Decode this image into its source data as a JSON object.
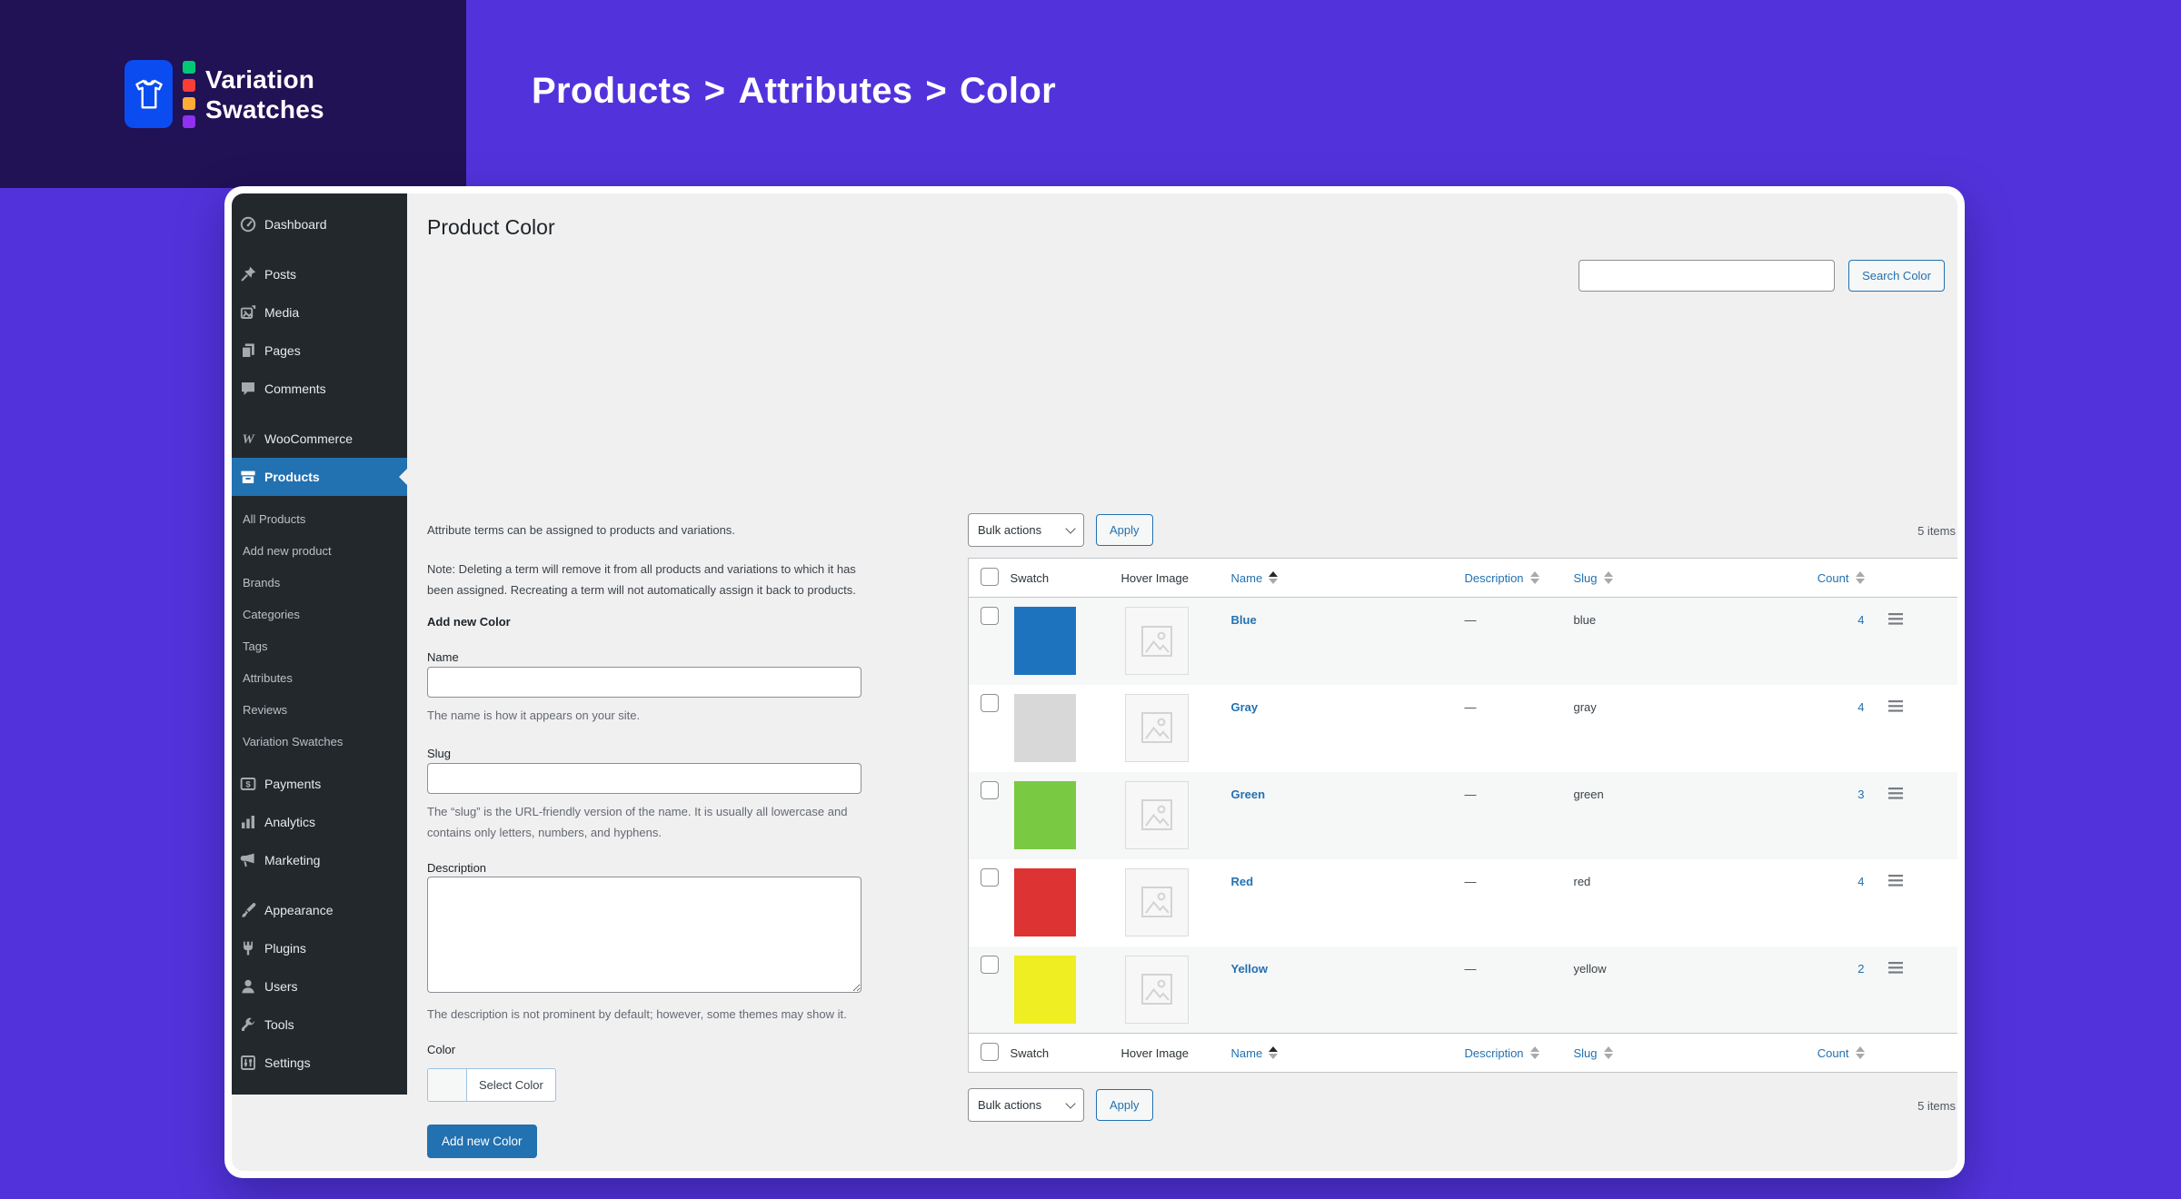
{
  "colors": {
    "frame_purple": "#5233db",
    "frame_dark": "#211155",
    "brand_blue": "#0a4cf0",
    "wp_blue": "#2271b1",
    "sidebar_bg": "#23282d",
    "content_bg": "#f0f0f1"
  },
  "brand": {
    "name_line1": "Variation",
    "name_line2": "Swatches",
    "palette": [
      "#00c875",
      "#f83e36",
      "#ffab38",
      "#9030f0"
    ]
  },
  "breadcrumb": {
    "items": [
      "Products",
      "Attributes",
      "Color"
    ],
    "separator": ">"
  },
  "sidebar": {
    "items": [
      {
        "id": "dashboard",
        "label": "Dashboard",
        "icon": "dashboard-icon"
      },
      {
        "id": "posts",
        "label": "Posts",
        "icon": "posts-icon",
        "sep_before": true
      },
      {
        "id": "media",
        "label": "Media",
        "icon": "media-icon"
      },
      {
        "id": "pages",
        "label": "Pages",
        "icon": "pages-icon"
      },
      {
        "id": "comments",
        "label": "Comments",
        "icon": "comments-icon"
      },
      {
        "id": "woocommerce",
        "label": "WooCommerce",
        "icon": "woocommerce-icon",
        "sep_before": true
      },
      {
        "id": "products",
        "label": "Products",
        "icon": "products-icon",
        "active": true
      },
      {
        "id": "payments",
        "label": "Payments",
        "icon": "payments-icon"
      },
      {
        "id": "analytics",
        "label": "Analytics",
        "icon": "analytics-icon"
      },
      {
        "id": "marketing",
        "label": "Marketing",
        "icon": "marketing-icon"
      },
      {
        "id": "appearance",
        "label": "Appearance",
        "icon": "appearance-icon",
        "sep_before": true
      },
      {
        "id": "plugins",
        "label": "Plugins",
        "icon": "plugins-icon"
      },
      {
        "id": "users",
        "label": "Users",
        "icon": "users-icon"
      },
      {
        "id": "tools",
        "label": "Tools",
        "icon": "tools-icon"
      },
      {
        "id": "settings",
        "label": "Settings",
        "icon": "settings-icon"
      }
    ],
    "products_submenu": [
      "All Products",
      "Add new product",
      "Brands",
      "Categories",
      "Tags",
      "Attributes",
      "Reviews",
      "Variation Swatches"
    ]
  },
  "page": {
    "title": "Product Color",
    "intro": "Attribute terms can be assigned to products and variations.",
    "note": "Note: Deleting a term will remove it from all products and variations to which it has been assigned. Recreating a term will not automatically assign it back to products.",
    "form": {
      "heading": "Add new Color",
      "name_label": "Name",
      "name_help": "The name is how it appears on your site.",
      "slug_label": "Slug",
      "slug_help": "The “slug” is the URL-friendly version of the name. It is usually all lowercase and contains only letters, numbers, and hyphens.",
      "description_label": "Description",
      "description_help": "The description is not prominent by default; however, some themes may show it.",
      "color_label": "Color",
      "select_color_label": "Select Color",
      "submit_label": "Add new Color"
    },
    "search": {
      "input_value": "",
      "button_label": "Search Color"
    },
    "bulk": {
      "select_label": "Bulk actions",
      "apply_label": "Apply"
    },
    "items_count": "5 items",
    "table": {
      "columns": [
        "Swatch",
        "Hover Image",
        "Name",
        "Description",
        "Slug",
        "Count"
      ],
      "sorted_by": "Name",
      "sort_direction": "asc",
      "rows": [
        {
          "name": "Blue",
          "swatch_color": "#1e73be",
          "description": "—",
          "slug": "blue",
          "count": "4"
        },
        {
          "name": "Gray",
          "swatch_color": "#d8d8d8",
          "description": "—",
          "slug": "gray",
          "count": "4"
        },
        {
          "name": "Green",
          "swatch_color": "#7ac943",
          "description": "—",
          "slug": "green",
          "count": "3"
        },
        {
          "name": "Red",
          "swatch_color": "#dd3333",
          "description": "—",
          "slug": "red",
          "count": "4"
        },
        {
          "name": "Yellow",
          "swatch_color": "#eeee22",
          "description": "—",
          "slug": "yellow",
          "count": "2"
        }
      ]
    }
  }
}
